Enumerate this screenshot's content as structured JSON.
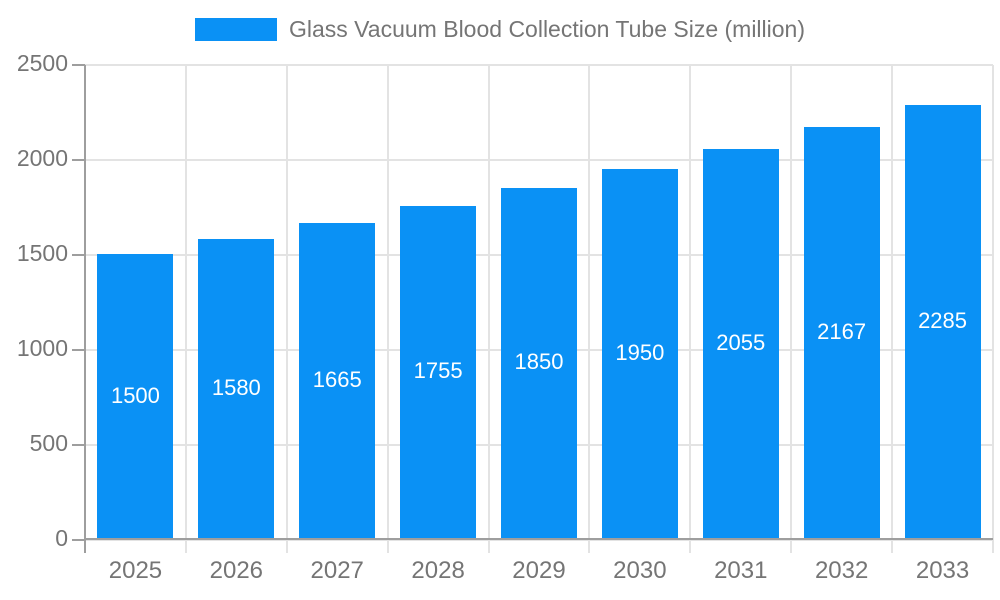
{
  "legend": {
    "label": "Glass Vacuum Blood Collection Tube Size (million)"
  },
  "chart_data": {
    "type": "bar",
    "title": "Glass Vacuum Blood Collection Tube Size (million)",
    "categories": [
      "2025",
      "2026",
      "2027",
      "2028",
      "2029",
      "2030",
      "2031",
      "2032",
      "2033"
    ],
    "values": [
      1500,
      1580,
      1665,
      1755,
      1850,
      1950,
      2055,
      2167,
      2285
    ],
    "xlabel": "",
    "ylabel": "",
    "ylim": [
      0,
      2500
    ],
    "yticks": [
      0,
      500,
      1000,
      1500,
      2000,
      2500
    ],
    "grid": true,
    "legend_position": "top-center",
    "value_labels": "inside-center",
    "colors": {
      "bar": "#0a91f5",
      "bar_label_text": "#ffffff",
      "axis_text": "#757575",
      "gridline": "#e3e3e3",
      "axis_line": "#9e9e9e",
      "background": "#ffffff"
    }
  }
}
